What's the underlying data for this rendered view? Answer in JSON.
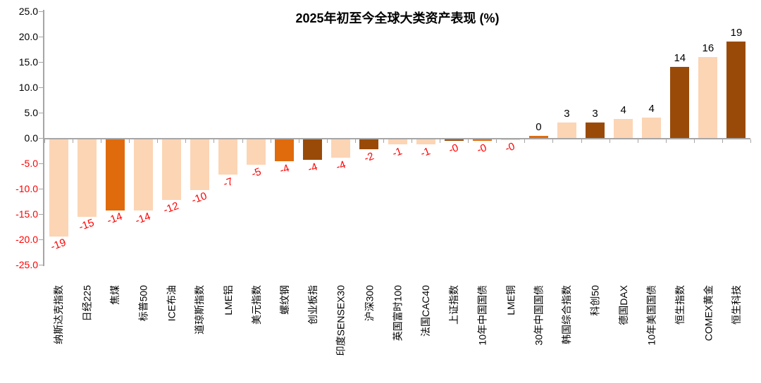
{
  "chart_data": {
    "type": "bar",
    "title": "2025年初至今全球大类资产表现 (%)",
    "xlabel": "",
    "ylabel": "",
    "ylim": [
      -25,
      25
    ],
    "ytick_step": 5,
    "yticks": [
      "25.0",
      "20.0",
      "15.0",
      "10.0",
      "5.0",
      "0.0",
      "-5.0",
      "-10.0",
      "-15.0",
      "-20.0",
      "-25.0"
    ],
    "grid": false,
    "legend": "none",
    "value_label_colors": {
      "positive": "#000000",
      "negative": "#FF0000"
    },
    "axis_color": "#A6A6A6",
    "colors": {
      "light": "#FCD5B5",
      "orange": "#E06B0D",
      "dark": "#9A4A08"
    },
    "bars": [
      {
        "category": "纳斯达克指数",
        "value": -19.2,
        "display": "-19",
        "color": "light"
      },
      {
        "category": "日经225",
        "value": -15.3,
        "display": "-15",
        "color": "light"
      },
      {
        "category": "焦煤",
        "value": -14.0,
        "display": "-14",
        "color": "orange"
      },
      {
        "category": "标普500",
        "value": -14.0,
        "display": "-14",
        "color": "light"
      },
      {
        "category": "ICE布油",
        "value": -12.0,
        "display": "-12",
        "color": "light"
      },
      {
        "category": "道琼斯指数",
        "value": -10.0,
        "display": "-10",
        "color": "light"
      },
      {
        "category": "LME铝",
        "value": -7.0,
        "display": "-7",
        "color": "light"
      },
      {
        "category": "美元指数",
        "value": -5.0,
        "display": "-5",
        "color": "light"
      },
      {
        "category": "螺纹钢",
        "value": -4.3,
        "display": "-4",
        "color": "orange"
      },
      {
        "category": "创业板指",
        "value": -4.0,
        "display": "-4",
        "color": "dark"
      },
      {
        "category": "印度SENSEX30",
        "value": -3.6,
        "display": "-4",
        "color": "light"
      },
      {
        "category": "沪深300",
        "value": -2.0,
        "display": "-2",
        "color": "dark"
      },
      {
        "category": "英国富时100",
        "value": -1.0,
        "display": "-1",
        "color": "light"
      },
      {
        "category": "法国CAC40",
        "value": -1.0,
        "display": "-1",
        "color": "light"
      },
      {
        "category": "上证指数",
        "value": -0.3,
        "display": "-0",
        "color": "dark"
      },
      {
        "category": "10年中国国债",
        "value": -0.3,
        "display": "-0",
        "color": "orange"
      },
      {
        "category": "LME铜",
        "value": -0.02,
        "display": "-0",
        "color": "light"
      },
      {
        "category": "30年中国国债",
        "value": 0.4,
        "display": "0",
        "color": "orange"
      },
      {
        "category": "韩国综合指数",
        "value": 3.0,
        "display": "3",
        "color": "light"
      },
      {
        "category": "科创50",
        "value": 3.0,
        "display": "3",
        "color": "dark"
      },
      {
        "category": "德国DAX",
        "value": 3.8,
        "display": "4",
        "color": "light"
      },
      {
        "category": "10年美国国债",
        "value": 4.0,
        "display": "4",
        "color": "light"
      },
      {
        "category": "恒生指数",
        "value": 14.0,
        "display": "14",
        "color": "dark"
      },
      {
        "category": "COMEX黄金",
        "value": 16.0,
        "display": "16",
        "color": "light"
      },
      {
        "category": "恒生科技",
        "value": 19.0,
        "display": "19",
        "color": "dark"
      }
    ]
  }
}
